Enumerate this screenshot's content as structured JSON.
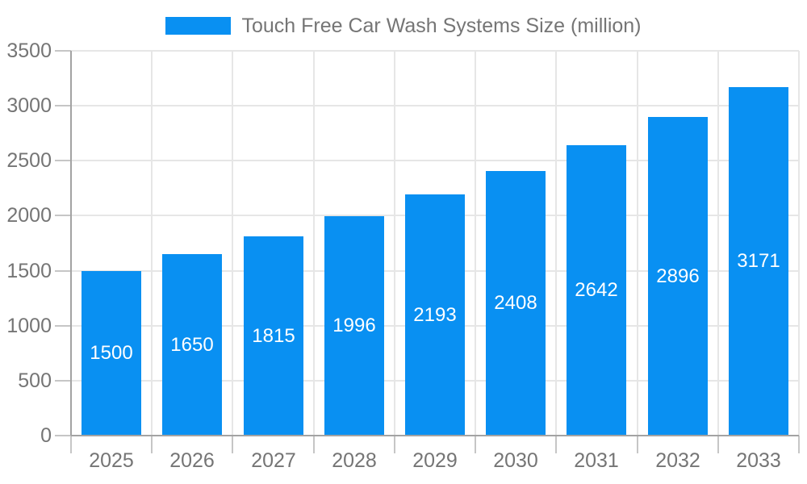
{
  "legend": {
    "label": "Touch Free Car Wash Systems Size (million)"
  },
  "colors": {
    "bar": "#0990f2",
    "bar_label": "#ffffff",
    "axis_line": "#a3a3a3",
    "tick": "#c6c6c6",
    "gridline": "#e6e6e6",
    "label_text": "#757575",
    "background": "#ffffff"
  },
  "chart_data": {
    "type": "bar",
    "title": "Touch Free Car Wash Systems Size (million)",
    "categories": [
      "2025",
      "2026",
      "2027",
      "2028",
      "2029",
      "2030",
      "2031",
      "2032",
      "2033"
    ],
    "values": [
      1500,
      1650,
      1815,
      1996,
      2193,
      2408,
      2642,
      2896,
      3171
    ],
    "series_name": "Touch Free Car Wash Systems Size (million)",
    "xlabel": "",
    "ylabel": "",
    "ylim": [
      0,
      3500
    ],
    "ytick_step": 500,
    "ytick_labels": [
      "0",
      "500",
      "1000",
      "1500",
      "2000",
      "2500",
      "3000",
      "3500"
    ],
    "grid": true,
    "legend_position": "top-center",
    "value_label_position": "inside-center",
    "value_label_color": "#ffffff"
  }
}
